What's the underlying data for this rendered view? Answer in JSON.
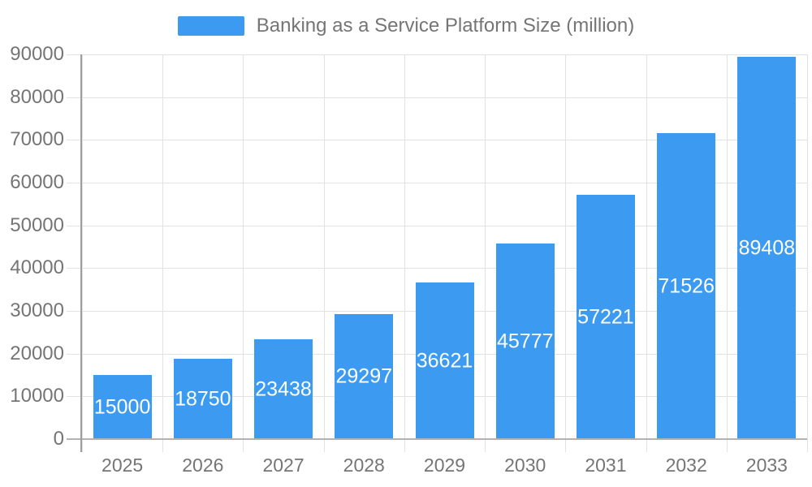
{
  "legend": {
    "label": "Banking as a Service Platform Size (million)",
    "swatch_color": "#3c9bf0"
  },
  "chart_data": {
    "type": "bar",
    "title": "Banking as a Service Platform Size (million)",
    "categories": [
      "2025",
      "2026",
      "2027",
      "2028",
      "2029",
      "2030",
      "2031",
      "2032",
      "2033"
    ],
    "values": [
      15000,
      18750,
      23438,
      29297,
      36621,
      45777,
      57221,
      71526,
      89408
    ],
    "xlabel": "",
    "ylabel": "",
    "ylim": [
      0,
      90000
    ],
    "yticks": [
      0,
      10000,
      20000,
      30000,
      40000,
      50000,
      60000,
      70000,
      80000,
      90000
    ],
    "grid": true,
    "legend_position": "top-center",
    "colors": {
      "bar": "#3c9bf0",
      "value_label": "#ffffff",
      "axis_text": "#757575",
      "gridline": "#e2e2e2",
      "yaxis_line": "#9e9e9e",
      "xaxis_line": "#b2b2b2"
    }
  }
}
